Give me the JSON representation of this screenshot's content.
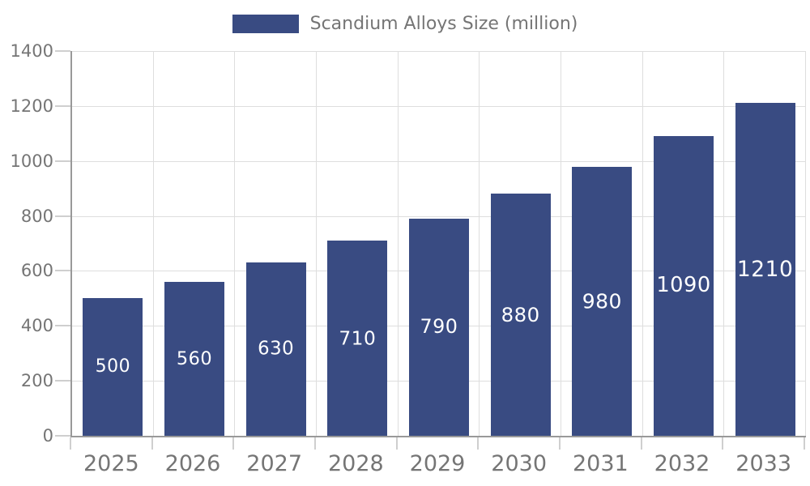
{
  "legend": {
    "label": "Scandium Alloys Size (million)"
  },
  "chart_data": {
    "type": "bar",
    "title": "Scandium Alloys Size (million)",
    "series_name": "Scandium Alloys Size (million)",
    "categories": [
      "2025",
      "2026",
      "2027",
      "2028",
      "2029",
      "2030",
      "2031",
      "2032",
      "2033"
    ],
    "values": [
      500,
      560,
      630,
      710,
      790,
      880,
      980,
      1090,
      1210
    ],
    "xlabel": "",
    "ylabel": "",
    "ylim": [
      0,
      1400
    ],
    "yticks": [
      0,
      200,
      400,
      600,
      800,
      1000,
      1200,
      1400
    ],
    "grid": true,
    "legend_position": "top-center",
    "bar_labels_inside": true,
    "colors": {
      "bar": "#394b82",
      "bar_label": "#ffffff",
      "axis_text": "#757575",
      "grid_line": "#dedede",
      "axis_line": "#999999",
      "tick_line": "#cfcfcf",
      "background": "#ffffff"
    }
  }
}
